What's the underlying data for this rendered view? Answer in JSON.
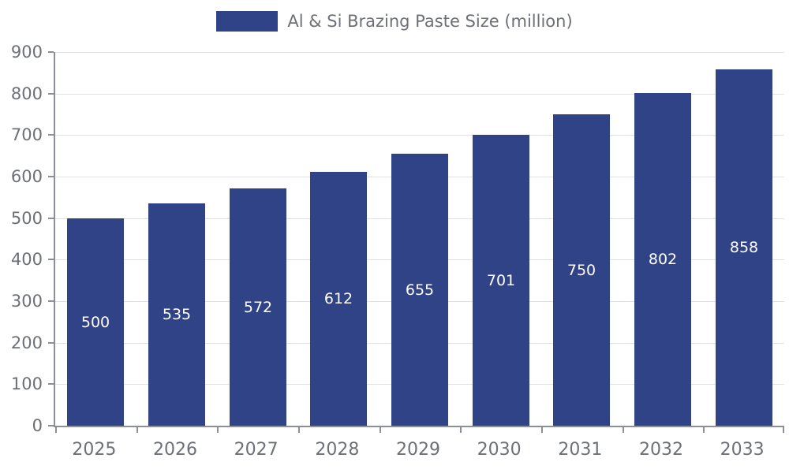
{
  "colors": {
    "bar": "#304387",
    "axis": "#8a8f99",
    "grid": "#e0e0e6",
    "text": "#6e7079",
    "bar_label_text": "#ffffff"
  },
  "chart_data": {
    "type": "bar",
    "title": "Al & Si Brazing Paste Size (million)",
    "categories": [
      "2025",
      "2026",
      "2027",
      "2028",
      "2029",
      "2030",
      "2031",
      "2032",
      "2033"
    ],
    "values": [
      500,
      535,
      572,
      612,
      655,
      701,
      750,
      802,
      858
    ],
    "xlabel": "",
    "ylabel": "",
    "ylim": [
      0,
      900
    ],
    "ytick_step": 100,
    "yticks": [
      0,
      100,
      200,
      300,
      400,
      500,
      600,
      700,
      800,
      900
    ],
    "grid": true,
    "legend_position": "top-center",
    "value_labels": "inside-center"
  }
}
